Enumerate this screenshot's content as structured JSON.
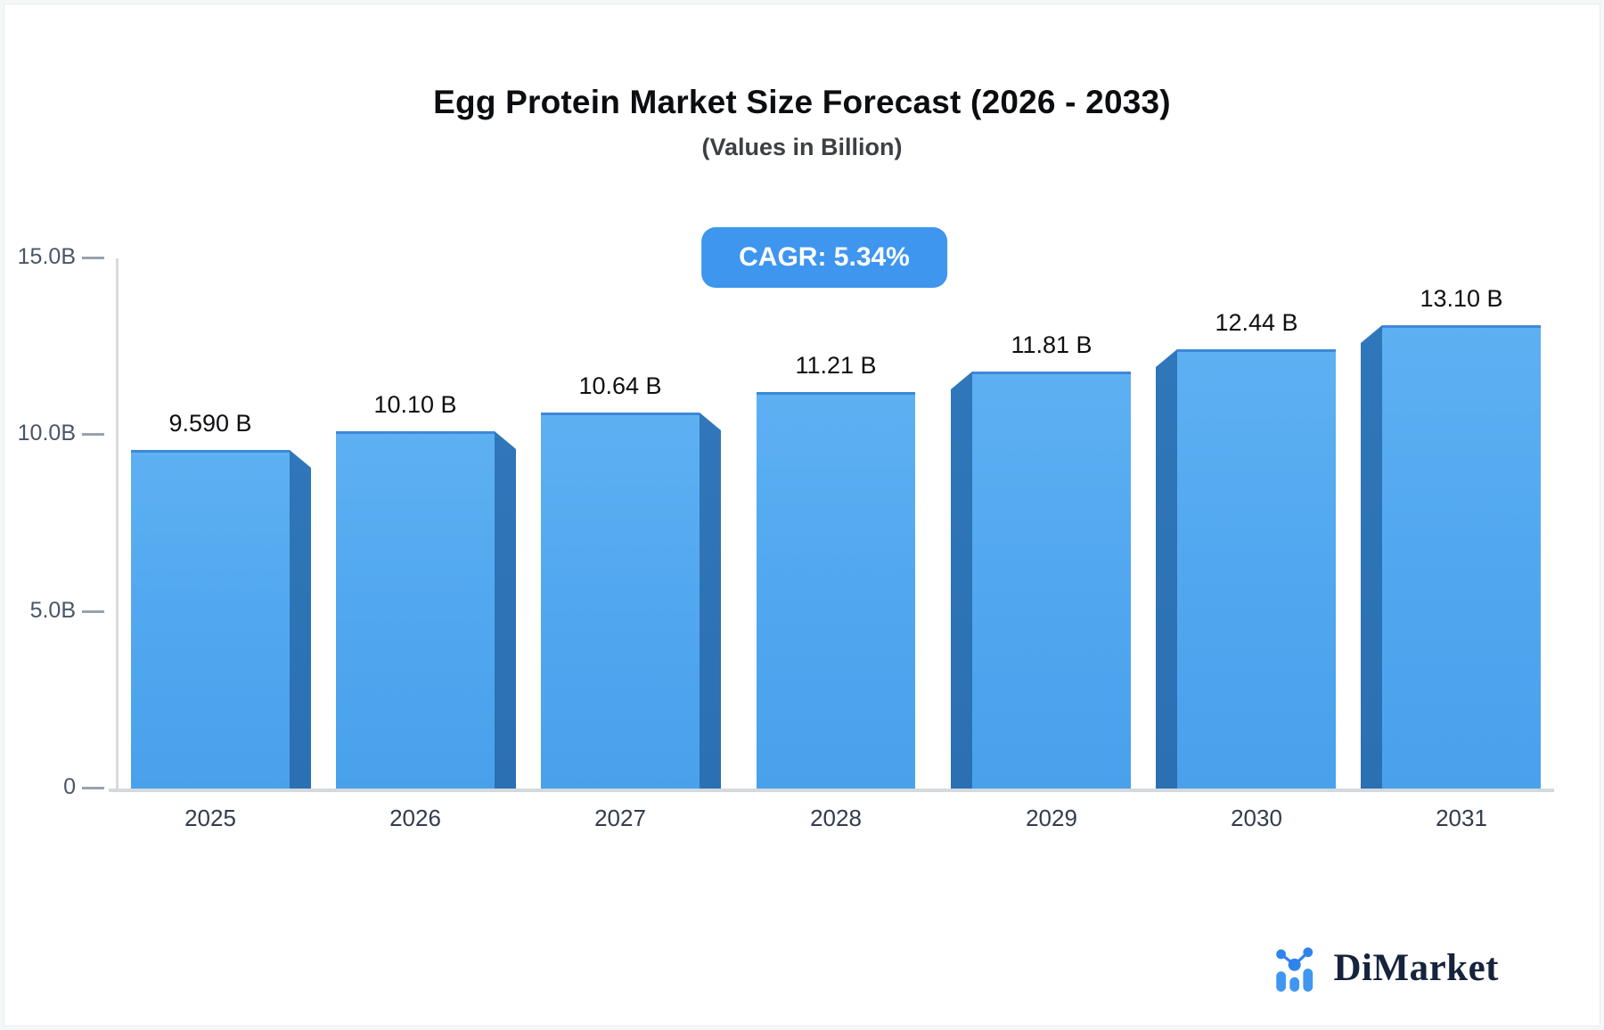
{
  "title": "Egg Protein Market Size Forecast (2026 - 2033)",
  "subtitle": "(Values in Billion)",
  "badge": {
    "label": "CAGR: 5.34%",
    "bg_color": "#3e96ee",
    "text_color": "#ffffff"
  },
  "chart_data": {
    "type": "bar",
    "categories": [
      "2025",
      "2026",
      "2027",
      "2028",
      "2029",
      "2030",
      "2031"
    ],
    "values": [
      9.59,
      10.1,
      10.64,
      11.21,
      11.81,
      12.44,
      13.1
    ],
    "value_labels": [
      "9.590 B",
      "10.10 B",
      "10.64 B",
      "11.21 B",
      "11.81 B",
      "12.44 B",
      "13.10 B"
    ],
    "title": "Egg Protein Market Size Forecast (2026 - 2033)",
    "subtitle": "(Values in Billion)",
    "xlabel": "",
    "ylabel": "",
    "ylim": [
      0,
      15
    ],
    "yticks": [
      {
        "value": 0,
        "label": "0"
      },
      {
        "value": 5,
        "label": "5.0B"
      },
      {
        "value": 10,
        "label": "10.0B"
      },
      {
        "value": 15,
        "label": "15.0B"
      }
    ],
    "grid": false,
    "legend": null,
    "style_3d": "perspective toward center bar",
    "bar_color": "#55a9ef",
    "bar_side_color": "#2b72b4",
    "bar_top_edge_color": "#3e88d9"
  },
  "logo": {
    "text": "DiMarket",
    "icon": "bar-line-chart-icon",
    "icon_color": "#4196f0",
    "text_color": "#16233d"
  }
}
